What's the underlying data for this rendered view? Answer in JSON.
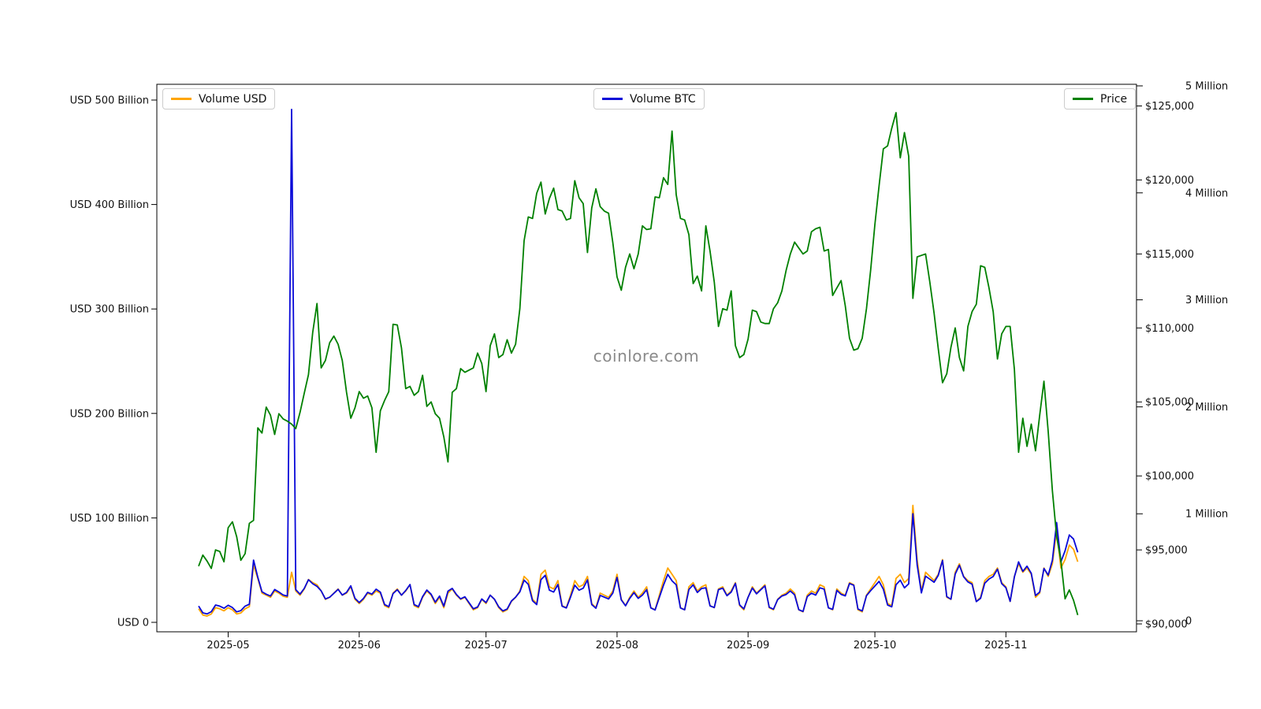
{
  "watermark": {
    "text": "coinlore.com"
  },
  "legends": [
    {
      "label": "Volume USD",
      "color": "#ffa500"
    },
    {
      "label": "Volume BTC",
      "color": "#0808d8"
    },
    {
      "label": "Price",
      "color": "#008000"
    }
  ],
  "axes": {
    "left_usd_billion": {
      "ticks": [
        {
          "label": "USD 0",
          "value": 0
        },
        {
          "label": "USD 100 Billion",
          "value": 100
        },
        {
          "label": "USD 200 Billion",
          "value": 200
        },
        {
          "label": "USD 300 Billion",
          "value": 300
        },
        {
          "label": "USD 400 Billion",
          "value": 400
        },
        {
          "label": "USD 500 Billion",
          "value": 500
        }
      ]
    },
    "right_price": {
      "ticks": [
        {
          "label": "$90,000",
          "value": 90000
        },
        {
          "label": "$95,000",
          "value": 95000
        },
        {
          "label": "$100,000",
          "value": 100000
        },
        {
          "label": "$105,000",
          "value": 105000
        },
        {
          "label": "$110,000",
          "value": 110000
        },
        {
          "label": "$115,000",
          "value": 115000
        },
        {
          "label": "$120,000",
          "value": 120000
        },
        {
          "label": "$125,000",
          "value": 125000
        }
      ]
    },
    "right_btc_million": {
      "ticks": [
        {
          "label": "0",
          "value": 0
        },
        {
          "label": "1 Million",
          "value": 1
        },
        {
          "label": "2 Million",
          "value": 2
        },
        {
          "label": "3 Million",
          "value": 3
        },
        {
          "label": "4 Million",
          "value": 4
        },
        {
          "label": "5 Million",
          "value": 5
        }
      ]
    },
    "x": {
      "ticks": [
        {
          "label": "2025-05",
          "day": 7
        },
        {
          "label": "2025-06",
          "day": 38
        },
        {
          "label": "2025-07",
          "day": 68
        },
        {
          "label": "2025-08",
          "day": 99
        },
        {
          "label": "2025-09",
          "day": 130
        },
        {
          "label": "2025-10",
          "day": 160
        },
        {
          "label": "2025-11",
          "day": 191
        }
      ]
    }
  },
  "chart_data": {
    "type": "line",
    "title": "",
    "x": {
      "start_date": "2025-04-24",
      "end_date": "2025-11-18",
      "frequency": "daily",
      "count": 209
    },
    "axis_ranges": {
      "usd_billion_ylim": [
        -9,
        515
      ],
      "price_ylim": [
        89470,
        126460
      ],
      "btc_million_ylim": [
        -0.1,
        5.02
      ]
    },
    "legend_positions": [
      "upper left",
      "upper center",
      "upper right"
    ],
    "grid": false,
    "series": [
      {
        "name": "Volume USD",
        "axis": "usd_billion",
        "color": "#ffa500",
        "values": [
          13,
          7,
          6,
          8,
          14,
          13,
          11,
          14,
          12,
          8,
          9,
          13,
          15,
          55,
          42,
          28,
          26,
          24,
          30,
          28,
          25,
          24,
          48,
          30,
          26,
          32,
          41,
          38,
          36,
          30,
          22,
          24,
          28,
          32,
          26,
          28,
          34,
          22,
          18,
          22,
          28,
          26,
          30,
          28,
          16,
          14,
          28,
          32,
          26,
          30,
          36,
          16,
          14,
          24,
          30,
          26,
          18,
          24,
          14,
          28,
          32,
          26,
          22,
          24,
          18,
          12,
          14,
          22,
          18,
          26,
          22,
          14,
          10,
          12,
          20,
          24,
          30,
          44,
          40,
          22,
          18,
          46,
          50,
          34,
          32,
          40,
          16,
          14,
          26,
          40,
          34,
          36,
          44,
          18,
          14,
          28,
          26,
          24,
          30,
          46,
          22,
          16,
          24,
          30,
          24,
          28,
          34,
          14,
          12,
          26,
          40,
          52,
          46,
          40,
          14,
          12,
          34,
          38,
          30,
          34,
          36,
          16,
          14,
          32,
          34,
          26,
          30,
          38,
          16,
          12,
          24,
          34,
          28,
          32,
          36,
          14,
          12,
          22,
          26,
          28,
          32,
          28,
          12,
          10,
          26,
          30,
          28,
          36,
          34,
          14,
          12,
          32,
          28,
          26,
          38,
          36,
          12,
          10,
          26,
          32,
          38,
          44,
          36,
          18,
          16,
          42,
          46,
          38,
          42,
          112,
          60,
          30,
          48,
          44,
          40,
          46,
          60,
          24,
          22,
          48,
          56,
          44,
          40,
          38,
          20,
          24,
          40,
          44,
          46,
          52,
          38,
          34,
          20,
          44,
          56,
          48,
          52,
          46,
          24,
          28,
          52,
          44,
          56,
          88,
          52,
          60,
          74,
          70,
          58
        ]
      },
      {
        "name": "Volume BTC",
        "axis": "btc_million",
        "color": "#0808d8",
        "values": [
          0.138,
          0.074,
          0.064,
          0.085,
          0.147,
          0.137,
          0.117,
          0.145,
          0.124,
          0.083,
          0.095,
          0.137,
          0.155,
          0.567,
          0.407,
          0.272,
          0.248,
          0.231,
          0.292,
          0.269,
          0.241,
          0.231,
          4.78,
          0.291,
          0.249,
          0.303,
          0.384,
          0.346,
          0.322,
          0.28,
          0.204,
          0.22,
          0.256,
          0.294,
          0.241,
          0.265,
          0.327,
          0.21,
          0.17,
          0.209,
          0.266,
          0.249,
          0.295,
          0.268,
          0.152,
          0.132,
          0.254,
          0.29,
          0.239,
          0.283,
          0.339,
          0.152,
          0.132,
          0.225,
          0.287,
          0.248,
          0.173,
          0.231,
          0.136,
          0.277,
          0.303,
          0.246,
          0.205,
          0.224,
          0.168,
          0.112,
          0.129,
          0.204,
          0.17,
          0.239,
          0.201,
          0.13,
          0.092,
          0.11,
          0.185,
          0.22,
          0.27,
          0.38,
          0.34,
          0.187,
          0.151,
          0.384,
          0.425,
          0.286,
          0.268,
          0.339,
          0.136,
          0.119,
          0.221,
          0.333,
          0.286,
          0.304,
          0.382,
          0.152,
          0.117,
          0.237,
          0.221,
          0.204,
          0.259,
          0.405,
          0.195,
          0.14,
          0.209,
          0.263,
          0.209,
          0.24,
          0.291,
          0.12,
          0.101,
          0.219,
          0.333,
          0.434,
          0.373,
          0.336,
          0.119,
          0.102,
          0.292,
          0.336,
          0.264,
          0.302,
          0.308,
          0.139,
          0.124,
          0.291,
          0.305,
          0.234,
          0.267,
          0.349,
          0.148,
          0.111,
          0.22,
          0.306,
          0.252,
          0.29,
          0.326,
          0.127,
          0.108,
          0.197,
          0.231,
          0.246,
          0.278,
          0.242,
          0.104,
          0.087,
          0.226,
          0.258,
          0.24,
          0.308,
          0.295,
          0.121,
          0.107,
          0.284,
          0.247,
          0.233,
          0.348,
          0.332,
          0.11,
          0.091,
          0.234,
          0.281,
          0.325,
          0.368,
          0.295,
          0.147,
          0.13,
          0.337,
          0.379,
          0.308,
          0.345,
          1.0,
          0.523,
          0.261,
          0.417,
          0.389,
          0.36,
          0.424,
          0.564,
          0.225,
          0.202,
          0.436,
          0.519,
          0.411,
          0.363,
          0.342,
          0.179,
          0.21,
          0.351,
          0.39,
          0.414,
          0.482,
          0.347,
          0.309,
          0.182,
          0.41,
          0.551,
          0.462,
          0.51,
          0.444,
          0.236,
          0.269,
          0.489,
          0.427,
          0.566,
          0.918,
          0.551,
          0.654,
          0.802,
          0.764,
          0.64
        ]
      },
      {
        "name": "Price",
        "axis": "price",
        "color": "#008000",
        "values": [
          93900,
          94650,
          94250,
          93750,
          95000,
          94900,
          94200,
          96500,
          96900,
          95900,
          94300,
          94750,
          96800,
          97000,
          103250,
          102900,
          104650,
          104100,
          102800,
          104200,
          103850,
          103700,
          103500,
          103200,
          104300,
          105600,
          106850,
          109700,
          111650,
          107300,
          107800,
          109000,
          109450,
          108900,
          107800,
          105650,
          103900,
          104600,
          105700,
          105250,
          105400,
          104600,
          101600,
          104400,
          105100,
          105700,
          110250,
          110200,
          108650,
          105900,
          106050,
          105450,
          105700,
          106800,
          104700,
          105000,
          104200,
          103900,
          102650,
          100950,
          105650,
          105900,
          107250,
          107000,
          107150,
          107300,
          108300,
          107600,
          105700,
          108800,
          109600,
          108000,
          108200,
          109200,
          108300,
          108900,
          111300,
          115900,
          117500,
          117400,
          119100,
          119850,
          117700,
          118750,
          119450,
          118000,
          117900,
          117300,
          117400,
          119950,
          118800,
          118400,
          115100,
          118100,
          119400,
          118200,
          117900,
          117750,
          115750,
          113450,
          112550,
          114100,
          115000,
          114000,
          115000,
          116900,
          116650,
          116700,
          118850,
          118800,
          120150,
          119700,
          123300,
          119000,
          117400,
          117300,
          116300,
          113000,
          113500,
          112500,
          116900,
          115200,
          113100,
          110100,
          111300,
          111200,
          112500,
          108800,
          108000,
          108200,
          109250,
          111200,
          111100,
          110400,
          110300,
          110300,
          111300,
          111700,
          112500,
          113900,
          115000,
          115800,
          115400,
          115000,
          115200,
          116500,
          116700,
          116800,
          115200,
          115300,
          112200,
          112700,
          113200,
          111500,
          109300,
          108500,
          108600,
          109300,
          111300,
          113900,
          117000,
          119600,
          122100,
          122300,
          123500,
          124550,
          121500,
          123200,
          121600,
          112000,
          114800,
          114900,
          115000,
          113100,
          111000,
          108600,
          106300,
          106900,
          108700,
          110000,
          108000,
          107100,
          110100,
          111100,
          111600,
          114200,
          114100,
          112700,
          111100,
          107900,
          109600,
          110100,
          110100,
          107200,
          101600,
          103900,
          102000,
          103500,
          101700,
          104100,
          106400,
          103000,
          99000,
          95900,
          94300,
          91700,
          92300,
          91600,
          90600
        ]
      }
    ]
  }
}
